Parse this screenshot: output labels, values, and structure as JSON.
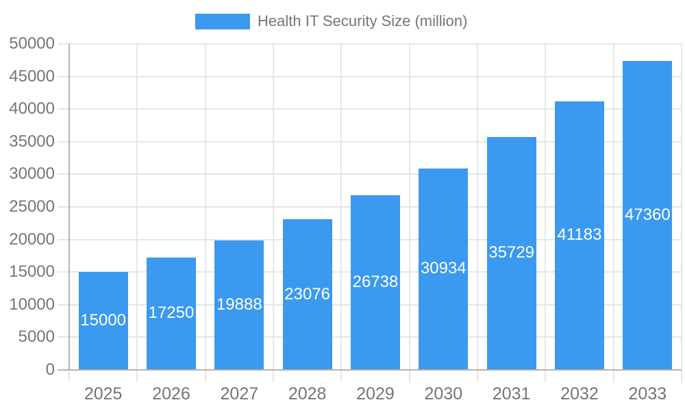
{
  "legend": {
    "label": "Health IT Security Size (million)"
  },
  "colors": {
    "bar": "#3b99f0",
    "grid": "#e6e6e6",
    "axis": "#b3b3b3",
    "text": "#757575",
    "value_label": "#ffffff",
    "background": "#ffffff"
  },
  "chart_data": {
    "type": "bar",
    "title": "Health IT Security Size (million)",
    "categories": [
      "2025",
      "2026",
      "2027",
      "2028",
      "2029",
      "2030",
      "2031",
      "2032",
      "2033"
    ],
    "values": [
      15000,
      17250,
      19888,
      23076,
      26738,
      30934,
      35729,
      41183,
      47360
    ],
    "xlabel": "",
    "ylabel": "",
    "ylim": [
      0,
      50000
    ],
    "ytick_step": 5000,
    "ytick_labels": [
      "0",
      "5000",
      "10000",
      "15000",
      "20000",
      "25000",
      "30000",
      "35000",
      "40000",
      "45000",
      "50000"
    ],
    "grid": true,
    "legend_position": "top",
    "bar_labels": true,
    "bar_label_position": "inside-center"
  }
}
